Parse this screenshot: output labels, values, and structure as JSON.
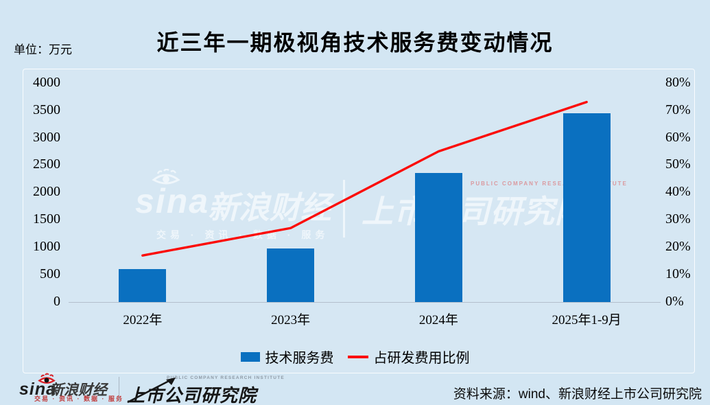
{
  "header": {
    "unit_label": "单位：万元",
    "title": "近三年一期极视角技术服务费变动情况"
  },
  "chart_data": {
    "type": "bar",
    "subtype": "bar+line combo, dual axis",
    "categories": [
      "2022年",
      "2023年",
      "2024年",
      "2025年1-9月"
    ],
    "series": [
      {
        "name": "技术服务费",
        "type": "bar",
        "axis": "left",
        "unit": "万元",
        "values": [
          600,
          980,
          2350,
          3450
        ],
        "color": "#0a70c0"
      },
      {
        "name": "占研发费用比例",
        "type": "line",
        "axis": "right",
        "unit": "%",
        "values": [
          17,
          27,
          55,
          73
        ],
        "color": "#fb0b07"
      }
    ],
    "left_axis": {
      "title": "万元",
      "min": 0,
      "max": 4000,
      "tick_step": 500,
      "ticks": [
        0,
        500,
        1000,
        1500,
        2000,
        2500,
        3000,
        3500,
        4000
      ]
    },
    "right_axis": {
      "title": "%",
      "min": 0,
      "max": 80,
      "tick_step": 10,
      "tick_labels": [
        "0%",
        "10%",
        "20%",
        "30%",
        "40%",
        "50%",
        "60%",
        "70%",
        "80%"
      ]
    },
    "grid": false,
    "legend_position": "bottom",
    "title": "近三年一期极视角技术服务费变动情况"
  },
  "watermark": {
    "brand": "sina",
    "brand_cn": "新浪财经",
    "tagline": "交易 · 资讯 · 数据 · 服务",
    "institute_en": "PUBLIC COMPANY RESEARCH INSTITUTE",
    "institute": "上市公司研究院"
  },
  "footer": {
    "sina_logo": "sina",
    "sina_cn": "新浪财经",
    "sina_tagline": "交易 · 资讯 · 数据 · 服务",
    "institute_en": "PUBLIC COMPANY RESEARCH INSTITUTE",
    "institute": "上市公司研究院",
    "source": "资料来源：wind、新浪财经上市公司研究院"
  },
  "colors": {
    "background": "#d3e6f3",
    "bar": "#0a70c0",
    "line": "#fb0b07",
    "axis_line": "#b3bfcc"
  }
}
